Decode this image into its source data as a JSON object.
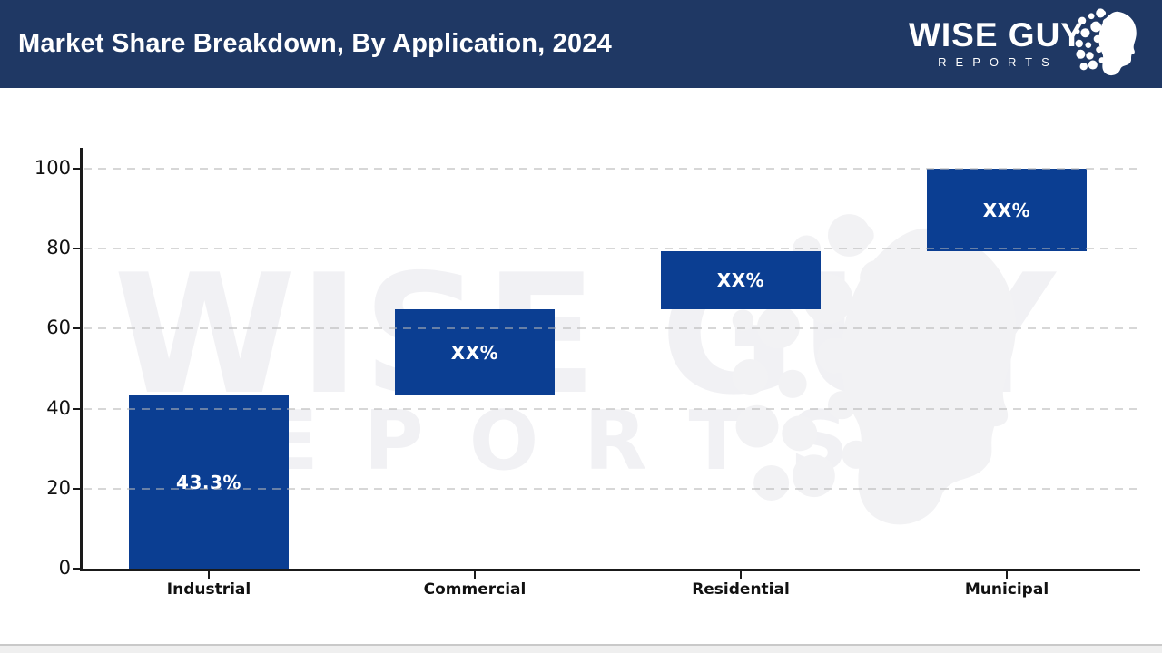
{
  "header": {
    "title": "Market Share Breakdown, By Application, 2024",
    "background_color": "#1F3864",
    "logo": {
      "line1": "WISE GUY",
      "line2": "REPORTS"
    }
  },
  "watermark": {
    "line1": "WISE GUY",
    "line2": "REPORTS"
  },
  "chart_data": {
    "type": "bar",
    "subtype": "waterfall-floating-bars",
    "title": "Market Share Breakdown, By Application, 2024",
    "categories": [
      "Industrial",
      "Commercial",
      "Residential",
      "Municipal"
    ],
    "bars": [
      {
        "category": "Industrial",
        "start": 0,
        "end": 43.3,
        "label": "43.3%"
      },
      {
        "category": "Commercial",
        "start": 43.3,
        "end": 64.8,
        "label": "XX%"
      },
      {
        "category": "Residential",
        "start": 64.8,
        "end": 79.3,
        "label": "XX%"
      },
      {
        "category": "Municipal",
        "start": 79.3,
        "end": 100,
        "label": "XX%"
      }
    ],
    "yticks": [
      0,
      20,
      40,
      60,
      80,
      100
    ],
    "ylim": [
      0,
      105
    ],
    "xlabel": "",
    "ylabel": "",
    "grid": true,
    "grid_style": "dashed",
    "legend": false,
    "bar_color": "#0B3E92",
    "value_label_color": "#ffffff",
    "axis_color": "#1a1a1a"
  }
}
